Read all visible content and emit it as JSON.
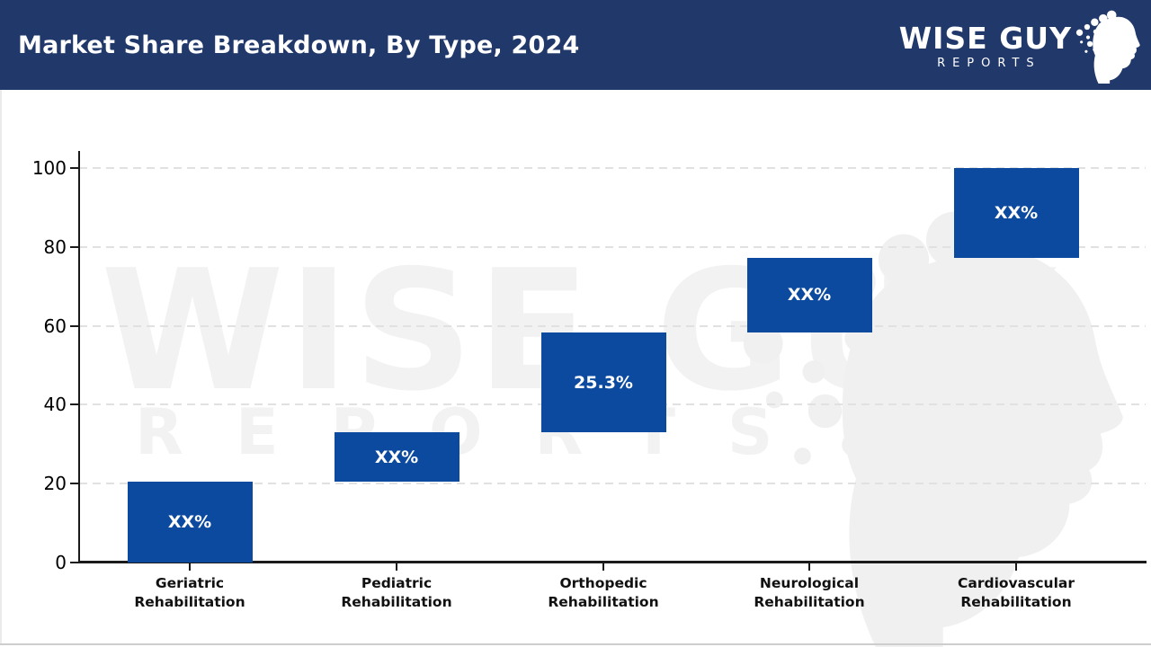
{
  "header": {
    "title": "Market Share Breakdown, By Type, 2024",
    "logo_primary": "WISE GUY",
    "logo_secondary": "REPORTS",
    "bg_color": "#21386B"
  },
  "watermark": {
    "primary": "WISE GUY",
    "secondary": "REPORTS"
  },
  "chart_data": {
    "type": "bar",
    "subtype": "floating-segment-waterfall",
    "title": "Market Share Breakdown, By Type, 2024",
    "xlabel": "",
    "ylabel": "",
    "ylim": [
      0,
      100
    ],
    "yticks": [
      0,
      20,
      40,
      60,
      80,
      100
    ],
    "grid": "horizontal-dashed",
    "legend": "none",
    "bar_color": "#0B4A9E",
    "bar_label_color": "#FFFFFF",
    "axis_color": "#1a1a1a",
    "categories": [
      "Geriatric Rehabilitation",
      "Pediatric Rehabilitation",
      "Orthopedic Rehabilitation",
      "Neurological Rehabilitation",
      "Cardiovascular Rehabilitation"
    ],
    "category_lines": [
      [
        "Geriatric",
        "Rehabilitation"
      ],
      [
        "Pediatric",
        "Rehabilitation"
      ],
      [
        "Orthopedic",
        "Rehabilitation"
      ],
      [
        "Neurological",
        "Rehabilitation"
      ],
      [
        "Cardiovascular",
        "Rehabilitation"
      ]
    ],
    "segments": [
      {
        "category": "Geriatric Rehabilitation",
        "label": "XX%",
        "start": 0,
        "end": 20.5
      },
      {
        "category": "Pediatric Rehabilitation",
        "label": "XX%",
        "start": 20.5,
        "end": 33.0
      },
      {
        "category": "Orthopedic Rehabilitation",
        "label": "25.3%",
        "start": 33.0,
        "end": 58.3
      },
      {
        "category": "Neurological Rehabilitation",
        "label": "XX%",
        "start": 58.3,
        "end": 77.3
      },
      {
        "category": "Cardiovascular Rehabilitation",
        "label": "XX%",
        "start": 77.3,
        "end": 100
      }
    ]
  }
}
